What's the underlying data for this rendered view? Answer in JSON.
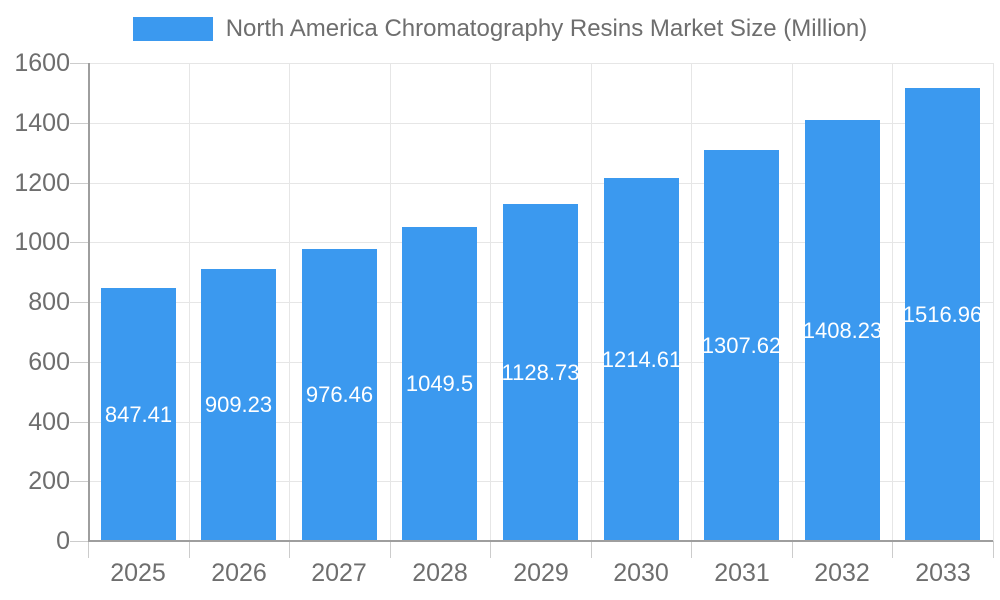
{
  "chart_data": {
    "type": "bar",
    "title": "North America Chromatography Resins Market Size (Million)",
    "categories": [
      "2025",
      "2026",
      "2027",
      "2028",
      "2029",
      "2030",
      "2031",
      "2032",
      "2033"
    ],
    "values": [
      847.41,
      909.23,
      976.46,
      1049.5,
      1128.73,
      1214.61,
      1307.62,
      1408.23,
      1516.96
    ],
    "value_labels": [
      "847.41",
      "909.23",
      "976.46",
      "1049.5",
      "1128.73",
      "1214.61",
      "1307.62",
      "1408.23",
      "1516.96"
    ],
    "xlabel": "",
    "ylabel": "",
    "ylim": [
      0,
      1600
    ],
    "yticks": [
      0,
      200,
      400,
      600,
      800,
      1000,
      1200,
      1400,
      1600
    ],
    "grid": true,
    "legend_position": "top",
    "series_name": "North America Chromatography Resins Market Size (Million)"
  },
  "colors": {
    "bar": "#3B99EF",
    "value_label": "#FFFFFF",
    "axis_text": "#6E6E6E",
    "gridline": "#E6E6E6",
    "tick": "#CCCCCC",
    "axis_line": "#9E9E9E",
    "background": "#FFFFFF"
  }
}
